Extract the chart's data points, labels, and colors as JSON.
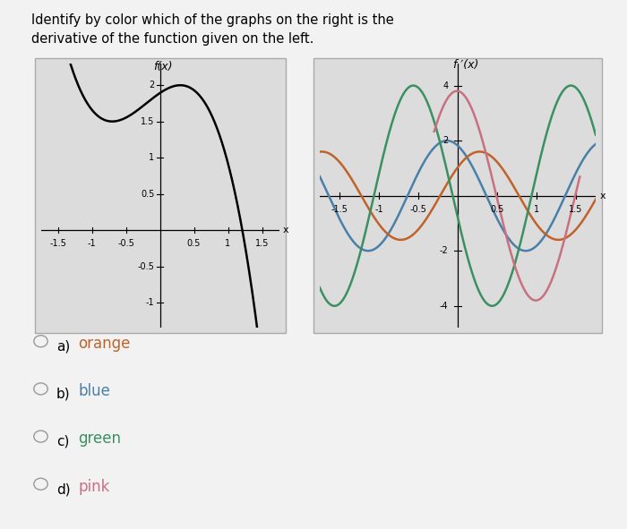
{
  "title_text": "Identify by color which of the graphs on the right is the\nderivative of the function given on the left.",
  "left_title": "f(x)",
  "right_title": "f ′(x)",
  "left_xlim": [
    -1.75,
    1.75
  ],
  "left_ylim": [
    -1.35,
    2.3
  ],
  "left_xticks": [
    -1.5,
    -1.0,
    -0.5,
    0.5,
    1.0,
    1.5
  ],
  "left_yticks": [
    -1.0,
    -0.5,
    0.5,
    1.0,
    1.5,
    2.0
  ],
  "right_xlim": [
    -1.75,
    1.75
  ],
  "right_ylim": [
    -4.8,
    4.8
  ],
  "right_xticks": [
    -1.5,
    -1.0,
    -0.5,
    0.5,
    1.0,
    1.5
  ],
  "right_yticks": [
    -4,
    -2,
    2,
    4
  ],
  "page_bg": "#f2f2f2",
  "panel_bg": "#dcdcdc",
  "orange_color": "#c0622a",
  "blue_color": "#4a7fa8",
  "green_color": "#3a9060",
  "pink_color": "#c97080",
  "options": [
    {
      "label": "a)",
      "color_name": "orange",
      "color": "#c0622a"
    },
    {
      "label": "b)",
      "color_name": "blue",
      "color": "#4a7fa8"
    },
    {
      "label": "c)",
      "color_name": "green",
      "color": "#3a9060"
    },
    {
      "label": "d)",
      "color_name": "pink",
      "color": "#c97080"
    }
  ]
}
